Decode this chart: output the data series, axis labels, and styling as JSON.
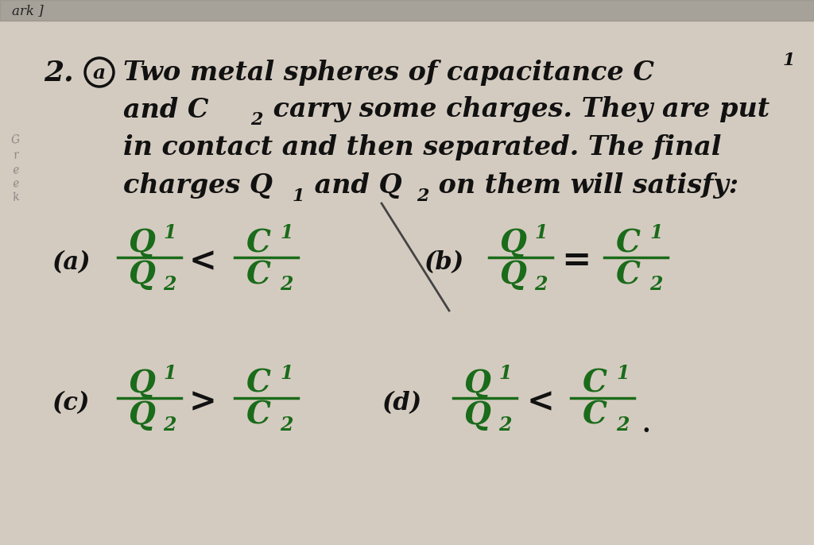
{
  "bg_color": "#d4cbc0",
  "top_bg_color": "#b8b0a8",
  "paper_color": "#e8e2d8",
  "text_color": "#111111",
  "green_color": "#1a6b1a",
  "fig_width": 10.24,
  "fig_height": 6.86,
  "top_strip_color": "#555555",
  "ark_text": "ark ]",
  "q2_circle_char": "a",
  "line1": "Two metal spheres of capacitance C",
  "line2a": "and C",
  "line2b": " carry some charges. They are put",
  "line3": "in contact and then separated. The final",
  "line4a": "charges Q",
  "line4b": " and Q",
  "line4c": " on them will satisfy:"
}
